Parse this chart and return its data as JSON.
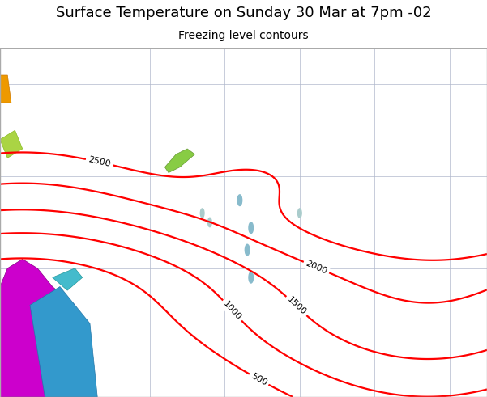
{
  "title": "Surface Temperature on Sunday 30 Mar at 7pm -02",
  "subtitle": "Freezing level contours",
  "title_fontsize": 13,
  "subtitle_fontsize": 10,
  "background_color": "#dce6f5",
  "map_background": "#dce6f5",
  "contour_color": "#ff0000",
  "contour_linewidth": 1.6,
  "contour_levels": [
    500,
    1000,
    1500,
    2000,
    2500
  ],
  "grid_color": "#b0b8cc",
  "grid_linewidth": 0.5,
  "fig_background": "#ffffff",
  "border_color": "#aaaaaa"
}
